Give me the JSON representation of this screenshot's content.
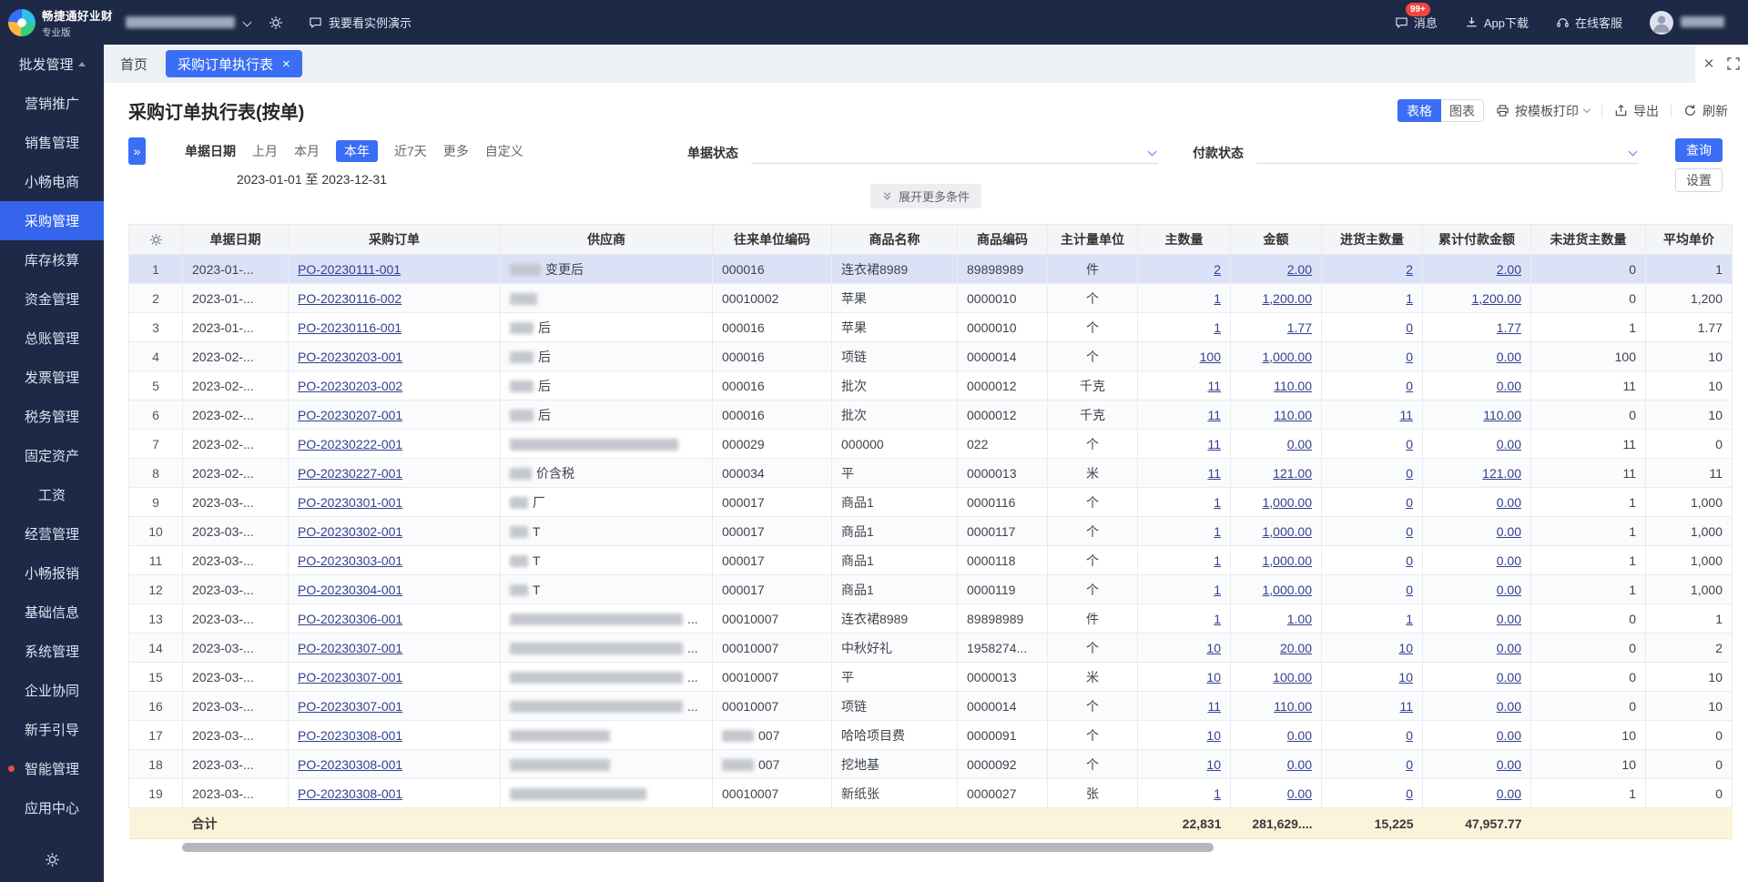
{
  "topbar": {
    "brand_line1": "畅捷通好业财",
    "brand_line2": "专业版",
    "demo_link": "我要看实例演示",
    "messages": {
      "label": "消息",
      "badge": "99+"
    },
    "app_download": "App下载",
    "online_service": "在线客服"
  },
  "sidebar": {
    "items": [
      {
        "label": "批发管理",
        "expanded": true
      },
      {
        "label": "营销推广"
      },
      {
        "label": "销售管理"
      },
      {
        "label": "小畅电商"
      },
      {
        "label": "采购管理",
        "active": true
      },
      {
        "label": "库存核算"
      },
      {
        "label": "资金管理"
      },
      {
        "label": "总账管理"
      },
      {
        "label": "发票管理"
      },
      {
        "label": "税务管理"
      },
      {
        "label": "固定资产"
      },
      {
        "label": "工资"
      },
      {
        "label": "经营管理"
      },
      {
        "label": "小畅报销"
      },
      {
        "label": "基础信息"
      },
      {
        "label": "系统管理"
      },
      {
        "label": "企业协同"
      },
      {
        "label": "新手引导"
      },
      {
        "label": "智能管理",
        "dot": true
      },
      {
        "label": "应用中心"
      }
    ]
  },
  "tabs": [
    {
      "label": "首页"
    },
    {
      "label": "采购订单执行表",
      "active": true,
      "closable": true
    }
  ],
  "page": {
    "title": "采购订单执行表(按单)",
    "view_table": "表格",
    "view_chart": "图表",
    "print": "按模板打印",
    "export": "导出",
    "refresh": "刷新"
  },
  "filters": {
    "date_label": "单据日期",
    "date_options": [
      "上月",
      "本月",
      "本年",
      "近7天",
      "更多",
      "自定义"
    ],
    "date_selected": "本年",
    "date_range": "2023-01-01 至 2023-12-31",
    "doc_status_label": "单据状态",
    "pay_status_label": "付款状态",
    "query": "查询",
    "settings": "设置",
    "expand_more": "展开更多条件"
  },
  "table": {
    "columns": [
      "单据日期",
      "采购订单",
      "供应商",
      "往来单位编码",
      "商品名称",
      "商品编码",
      "主计量单位",
      "主数量",
      "金额",
      "进货主数量",
      "累计付款金额",
      "未进货主数量",
      "平均单价"
    ],
    "rows": [
      {
        "n": "1",
        "date": "2023-01-...",
        "po": "PO-20230111-001",
        "sup_redact": 34,
        "sup": "变更后",
        "code": "000016",
        "name": "连衣裙8989",
        "pcode": "89898989",
        "unit": "件",
        "qty": "2",
        "amt": "2.00",
        "pqty": "2",
        "paid": "2.00",
        "unpqty": "0",
        "avg": "1",
        "selected": true
      },
      {
        "n": "2",
        "date": "2023-01-...",
        "po": "PO-20230116-002",
        "sup_redact": 30,
        "sup": "",
        "code": "00010002",
        "name": "苹果",
        "pcode": "0000010",
        "unit": "个",
        "qty": "1",
        "amt": "1,200.00",
        "pqty": "1",
        "paid": "1,200.00",
        "unpqty": "0",
        "avg": "1,200"
      },
      {
        "n": "3",
        "date": "2023-01-...",
        "po": "PO-20230116-001",
        "sup_redact": 26,
        "sup": "后",
        "code": "000016",
        "name": "苹果",
        "pcode": "0000010",
        "unit": "个",
        "qty": "1",
        "amt": "1.77",
        "pqty": "0",
        "paid": "1.77",
        "unpqty": "1",
        "avg": "1.77"
      },
      {
        "n": "4",
        "date": "2023-02-...",
        "po": "PO-20230203-001",
        "sup_redact": 26,
        "sup": "后",
        "code": "000016",
        "name": "项链",
        "pcode": "0000014",
        "unit": "个",
        "qty": "100",
        "amt": "1,000.00",
        "pqty": "0",
        "paid": "0.00",
        "unpqty": "100",
        "avg": "10"
      },
      {
        "n": "5",
        "date": "2023-02-...",
        "po": "PO-20230203-002",
        "sup_redact": 26,
        "sup": "后",
        "code": "000016",
        "name": "批次",
        "pcode": "0000012",
        "unit": "千克",
        "qty": "11",
        "amt": "110.00",
        "pqty": "0",
        "paid": "0.00",
        "unpqty": "11",
        "avg": "10"
      },
      {
        "n": "6",
        "date": "2023-02-...",
        "po": "PO-20230207-001",
        "sup_redact": 26,
        "sup": "后",
        "code": "000016",
        "name": "批次",
        "pcode": "0000012",
        "unit": "千克",
        "qty": "11",
        "amt": "110.00",
        "pqty": "11",
        "paid": "110.00",
        "unpqty": "0",
        "avg": "10"
      },
      {
        "n": "7",
        "date": "2023-02-...",
        "po": "PO-20230222-001",
        "sup_redact": 185,
        "sup": "",
        "code": "000029",
        "name": "000000",
        "pcode": "022",
        "unit": "个",
        "qty": "11",
        "amt": "0.00",
        "pqty": "0",
        "paid": "0.00",
        "unpqty": "11",
        "avg": "0"
      },
      {
        "n": "8",
        "date": "2023-02-...",
        "po": "PO-20230227-001",
        "sup_redact": 24,
        "sup": "价含税",
        "code": "000034",
        "name": "平",
        "pcode": "0000013",
        "unit": "米",
        "qty": "11",
        "amt": "121.00",
        "pqty": "0",
        "paid": "121.00",
        "unpqty": "11",
        "avg": "11"
      },
      {
        "n": "9",
        "date": "2023-03-...",
        "po": "PO-20230301-001",
        "sup_redact": 20,
        "sup": "厂",
        "code": "000017",
        "name": "商品1",
        "pcode": "0000116",
        "unit": "个",
        "qty": "1",
        "amt": "1,000.00",
        "pqty": "0",
        "paid": "0.00",
        "unpqty": "1",
        "avg": "1,000"
      },
      {
        "n": "10",
        "date": "2023-03-...",
        "po": "PO-20230302-001",
        "sup_redact": 20,
        "sup": "T",
        "code": "000017",
        "name": "商品1",
        "pcode": "0000117",
        "unit": "个",
        "qty": "1",
        "amt": "1,000.00",
        "pqty": "0",
        "paid": "0.00",
        "unpqty": "1",
        "avg": "1,000"
      },
      {
        "n": "11",
        "date": "2023-03-...",
        "po": "PO-20230303-001",
        "sup_redact": 20,
        "sup": "T",
        "code": "000017",
        "name": "商品1",
        "pcode": "0000118",
        "unit": "个",
        "qty": "1",
        "amt": "1,000.00",
        "pqty": "0",
        "paid": "0.00",
        "unpqty": "1",
        "avg": "1,000"
      },
      {
        "n": "12",
        "date": "2023-03-...",
        "po": "PO-20230304-001",
        "sup_redact": 20,
        "sup": "T",
        "code": "000017",
        "name": "商品1",
        "pcode": "0000119",
        "unit": "个",
        "qty": "1",
        "amt": "1,000.00",
        "pqty": "0",
        "paid": "0.00",
        "unpqty": "1",
        "avg": "1,000"
      },
      {
        "n": "13",
        "date": "2023-03-...",
        "po": "PO-20230306-001",
        "sup_redact": 190,
        "sup": "...",
        "code": "00010007",
        "name": "连衣裙8989",
        "pcode": "89898989",
        "unit": "件",
        "qty": "1",
        "amt": "1.00",
        "pqty": "1",
        "paid": "0.00",
        "unpqty": "0",
        "avg": "1"
      },
      {
        "n": "14",
        "date": "2023-03-...",
        "po": "PO-20230307-001",
        "sup_redact": 190,
        "sup": "...",
        "code": "00010007",
        "name": "中秋好礼",
        "pcode": "1958274...",
        "unit": "个",
        "qty": "10",
        "amt": "20.00",
        "pqty": "10",
        "paid": "0.00",
        "unpqty": "0",
        "avg": "2"
      },
      {
        "n": "15",
        "date": "2023-03-...",
        "po": "PO-20230307-001",
        "sup_redact": 190,
        "sup": "...",
        "code": "00010007",
        "name": "平",
        "pcode": "0000013",
        "unit": "米",
        "qty": "10",
        "amt": "100.00",
        "pqty": "10",
        "paid": "0.00",
        "unpqty": "0",
        "avg": "10"
      },
      {
        "n": "16",
        "date": "2023-03-...",
        "po": "PO-20230307-001",
        "sup_redact": 190,
        "sup": "...",
        "code": "00010007",
        "name": "项链",
        "pcode": "0000014",
        "unit": "个",
        "qty": "11",
        "amt": "110.00",
        "pqty": "11",
        "paid": "0.00",
        "unpqty": "0",
        "avg": "10"
      },
      {
        "n": "17",
        "date": "2023-03-...",
        "po": "PO-20230308-001",
        "sup_redact": 110,
        "sup": "",
        "code_redact": 35,
        "code": "007",
        "name": "哈哈项目费",
        "pcode": "0000091",
        "unit": "个",
        "qty": "10",
        "amt": "0.00",
        "pqty": "0",
        "paid": "0.00",
        "unpqty": "10",
        "avg": "0"
      },
      {
        "n": "18",
        "date": "2023-03-...",
        "po": "PO-20230308-001",
        "sup_redact": 110,
        "sup": "",
        "code_redact": 35,
        "code": "007",
        "name": "挖地基",
        "pcode": "0000092",
        "unit": "个",
        "qty": "10",
        "amt": "0.00",
        "pqty": "0",
        "paid": "0.00",
        "unpqty": "10",
        "avg": "0"
      },
      {
        "n": "19",
        "date": "2023-03-...",
        "po": "PO-20230308-001",
        "sup_redact": 150,
        "sup": "",
        "code": "00010007",
        "name": "新纸张",
        "pcode": "0000027",
        "unit": "张",
        "qty": "1",
        "amt": "0.00",
        "pqty": "0",
        "paid": "0.00",
        "unpqty": "1",
        "avg": "0"
      }
    ],
    "total": {
      "label": "合计",
      "qty": "22,831",
      "amount": "281,629....",
      "purchase_qty": "15,225",
      "paid_amount": "47,957.77"
    }
  }
}
